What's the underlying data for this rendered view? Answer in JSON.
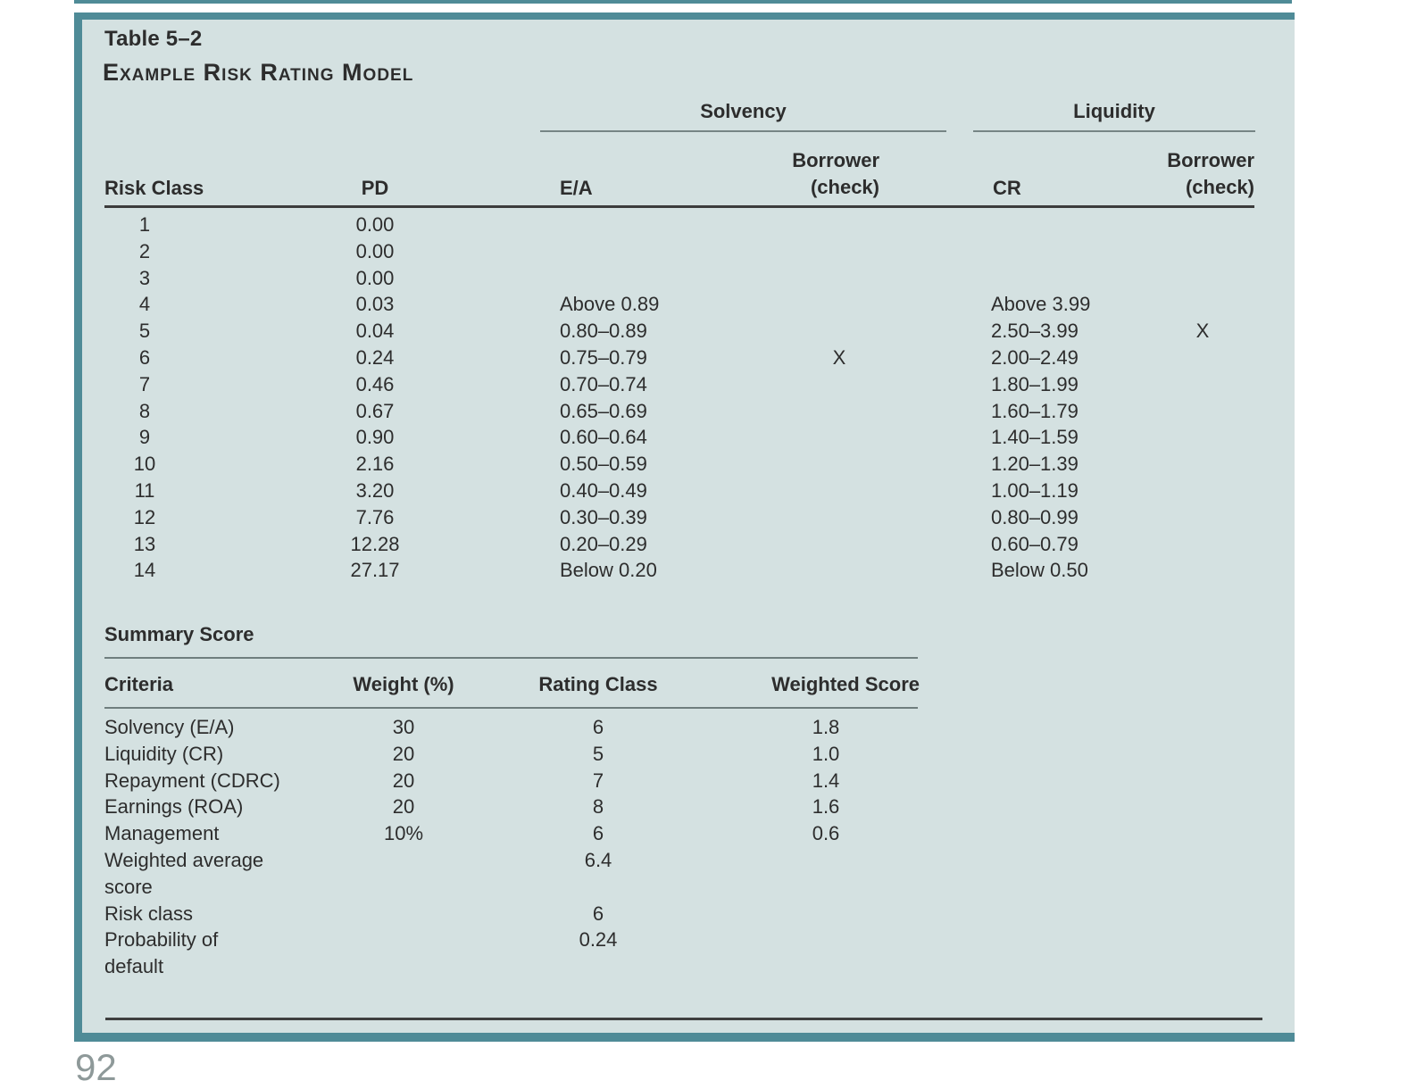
{
  "page": {
    "number": "92"
  },
  "header": {
    "table_label": "Table 5–2",
    "table_title": "Example Risk Rating Model"
  },
  "risk_table": {
    "group_headers": {
      "solvency": "Solvency",
      "liquidity": "Liquidity"
    },
    "column_headers": {
      "risk_class": "Risk Class",
      "pd": "PD",
      "ea": "E/A",
      "solvency_borrower": [
        "Borrower",
        "(check)"
      ],
      "cr": "CR",
      "liquidity_borrower": [
        "Borrower",
        "(check)"
      ]
    },
    "rows": [
      {
        "risk_class": "1",
        "pd": "0.00",
        "ea": "",
        "solvency_check": "",
        "cr": "",
        "liquidity_check": ""
      },
      {
        "risk_class": "2",
        "pd": "0.00",
        "ea": "",
        "solvency_check": "",
        "cr": "",
        "liquidity_check": ""
      },
      {
        "risk_class": "3",
        "pd": "0.00",
        "ea": "",
        "solvency_check": "",
        "cr": "",
        "liquidity_check": ""
      },
      {
        "risk_class": "4",
        "pd": "0.03",
        "ea": "Above 0.89",
        "solvency_check": "",
        "cr": "Above 3.99",
        "liquidity_check": ""
      },
      {
        "risk_class": "5",
        "pd": "0.04",
        "ea": "0.80–0.89",
        "solvency_check": "",
        "cr": "2.50–3.99",
        "liquidity_check": "X"
      },
      {
        "risk_class": "6",
        "pd": "0.24",
        "ea": "0.75–0.79",
        "solvency_check": "X",
        "cr": "2.00–2.49",
        "liquidity_check": ""
      },
      {
        "risk_class": "7",
        "pd": "0.46",
        "ea": "0.70–0.74",
        "solvency_check": "",
        "cr": "1.80–1.99",
        "liquidity_check": ""
      },
      {
        "risk_class": "8",
        "pd": "0.67",
        "ea": "0.65–0.69",
        "solvency_check": "",
        "cr": "1.60–1.79",
        "liquidity_check": ""
      },
      {
        "risk_class": "9",
        "pd": "0.90",
        "ea": "0.60–0.64",
        "solvency_check": "",
        "cr": "1.40–1.59",
        "liquidity_check": ""
      },
      {
        "risk_class": "10",
        "pd": "2.16",
        "ea": "0.50–0.59",
        "solvency_check": "",
        "cr": "1.20–1.39",
        "liquidity_check": ""
      },
      {
        "risk_class": "11",
        "pd": "3.20",
        "ea": "0.40–0.49",
        "solvency_check": "",
        "cr": "1.00–1.19",
        "liquidity_check": ""
      },
      {
        "risk_class": "12",
        "pd": "7.76",
        "ea": "0.30–0.39",
        "solvency_check": "",
        "cr": "0.80–0.99",
        "liquidity_check": ""
      },
      {
        "risk_class": "13",
        "pd": "12.28",
        "ea": "0.20–0.29",
        "solvency_check": "",
        "cr": "0.60–0.79",
        "liquidity_check": ""
      },
      {
        "risk_class": "14",
        "pd": "27.17",
        "ea": "Below 0.20",
        "solvency_check": "",
        "cr": "Below 0.50",
        "liquidity_check": ""
      }
    ]
  },
  "summary_table": {
    "heading": "Summary Score",
    "column_headers": {
      "criteria": "Criteria",
      "weight": "Weight (%)",
      "rating": "Rating Class",
      "score": "Weighted Score"
    },
    "rows": [
      {
        "criteria": "Solvency (E/A)",
        "weight": "30",
        "rating": "6",
        "score": "1.8"
      },
      {
        "criteria": "Liquidity (CR)",
        "weight": "20",
        "rating": "5",
        "score": "1.0"
      },
      {
        "criteria": "Repayment (CDRC)",
        "weight": "20",
        "rating": "7",
        "score": "1.4"
      },
      {
        "criteria": "Earnings (ROA)",
        "weight": "20",
        "rating": "8",
        "score": "1.6"
      },
      {
        "criteria": "Management",
        "weight": "10%",
        "rating": "6",
        "score": "0.6"
      },
      {
        "criteria": [
          "Weighted average",
          "score"
        ],
        "weight": "",
        "rating": "6.4",
        "score": ""
      },
      {
        "criteria": "Risk class",
        "weight": "",
        "rating": "6",
        "score": ""
      },
      {
        "criteria": [
          "Probability of",
          "default"
        ],
        "weight": "",
        "rating": "0.24",
        "score": ""
      }
    ]
  },
  "colors": {
    "accent_teal": "#4f8b97",
    "panel_background": "#d4e1e1",
    "text": "#2d2d2d",
    "light_rule": "#768585",
    "dark_rule": "#3c3c3c",
    "page_number": "#8e9999"
  }
}
